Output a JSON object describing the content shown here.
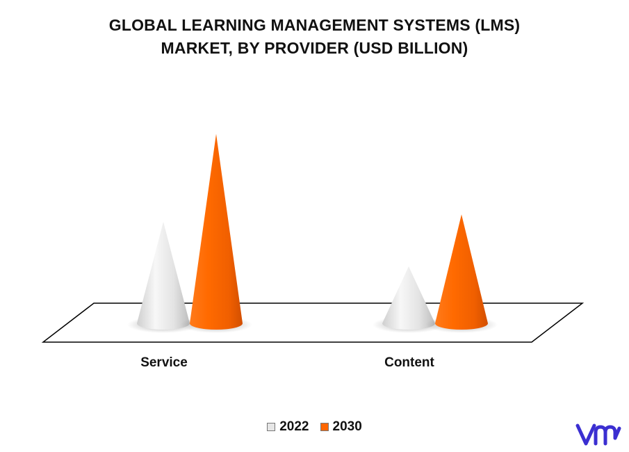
{
  "header": {
    "title_line1": "GLOBAL LEARNING MANAGEMENT SYSTEMS (LMS)",
    "title_line2": "MARKET, BY PROVIDER (USD BILLION)"
  },
  "colors": {
    "y2022": "#e6e6e6",
    "y2030": "#ff6600",
    "logo": "#3b2fd1"
  },
  "legend": [
    {
      "label": "2022",
      "color": "#e6e6e6"
    },
    {
      "label": "2030",
      "color": "#ff6600"
    }
  ],
  "logo": {
    "icon": "vmr-logo"
  },
  "chart_data": {
    "type": "bar",
    "style": "3d-cone",
    "categories": [
      "Service",
      "Content"
    ],
    "series": [
      {
        "name": "2022",
        "values": [
          8.2,
          4.6
        ]
      },
      {
        "name": "2030",
        "values": [
          15.3,
          8.8
        ]
      }
    ],
    "ylim": [
      0,
      16
    ],
    "grid": false,
    "legend_position": "bottom"
  }
}
